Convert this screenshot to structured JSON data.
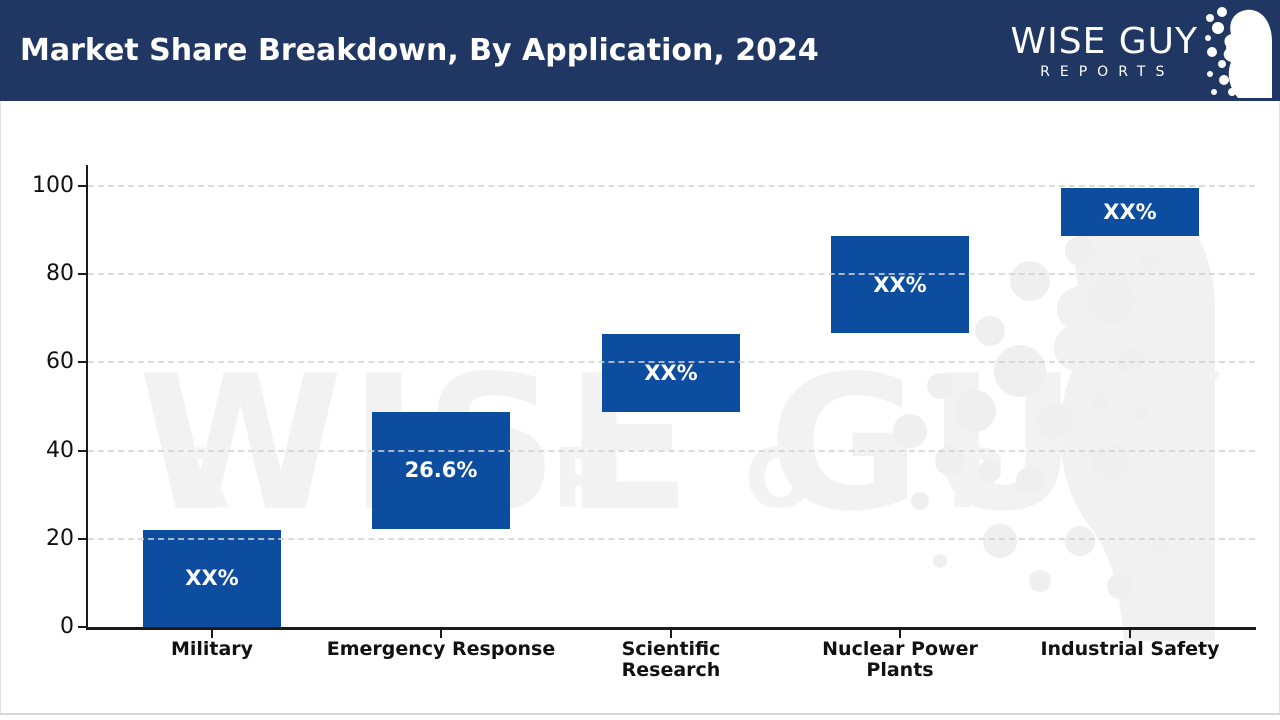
{
  "header": {
    "title": "Market Share Breakdown, By Application, 2024",
    "logo": {
      "line1": "WISE GUY",
      "line2": "REPORTS"
    }
  },
  "watermark": {
    "line1": "WISE GUY",
    "line2": "REPORTS"
  },
  "colors": {
    "header_bg": "#213763",
    "bar": "#0d4da0",
    "bar_label": "#ffffff",
    "gridline": "#dcdcdc",
    "axis": "#1a1a1a",
    "watermark": "#f2f2f2",
    "title_text": "#ffffff"
  },
  "chart_data": {
    "type": "bar",
    "subtype": "waterfall",
    "title": "Market Share Breakdown, By Application, 2024",
    "xlabel": "",
    "ylabel": "",
    "ylim": [
      0,
      100
    ],
    "yticks": [
      0,
      20,
      40,
      60,
      80,
      100
    ],
    "grid": {
      "axis": "y",
      "style": "dashed",
      "on": true
    },
    "legend": "none",
    "categories": [
      "Military",
      "Emergency Response",
      "Scientific\nResearch",
      "Nuclear Power\nPlants",
      "Industrial Safety"
    ],
    "segments": [
      {
        "category": "Military",
        "start": 0,
        "end": 22.1,
        "value": 22.1,
        "label": "XX%"
      },
      {
        "category": "Emergency Response",
        "start": 22.2,
        "end": 48.8,
        "value": 26.6,
        "label": "26.6%"
      },
      {
        "category": "Scientific Research",
        "start": 48.8,
        "end": 66.5,
        "value": 17.7,
        "label": "XX%"
      },
      {
        "category": "Nuclear Power Plants",
        "start": 66.6,
        "end": 88.6,
        "value": 22.0,
        "label": "XX%"
      },
      {
        "category": "Industrial Safety",
        "start": 88.7,
        "end": 99.6,
        "value": 10.9,
        "label": "XX%"
      }
    ]
  }
}
